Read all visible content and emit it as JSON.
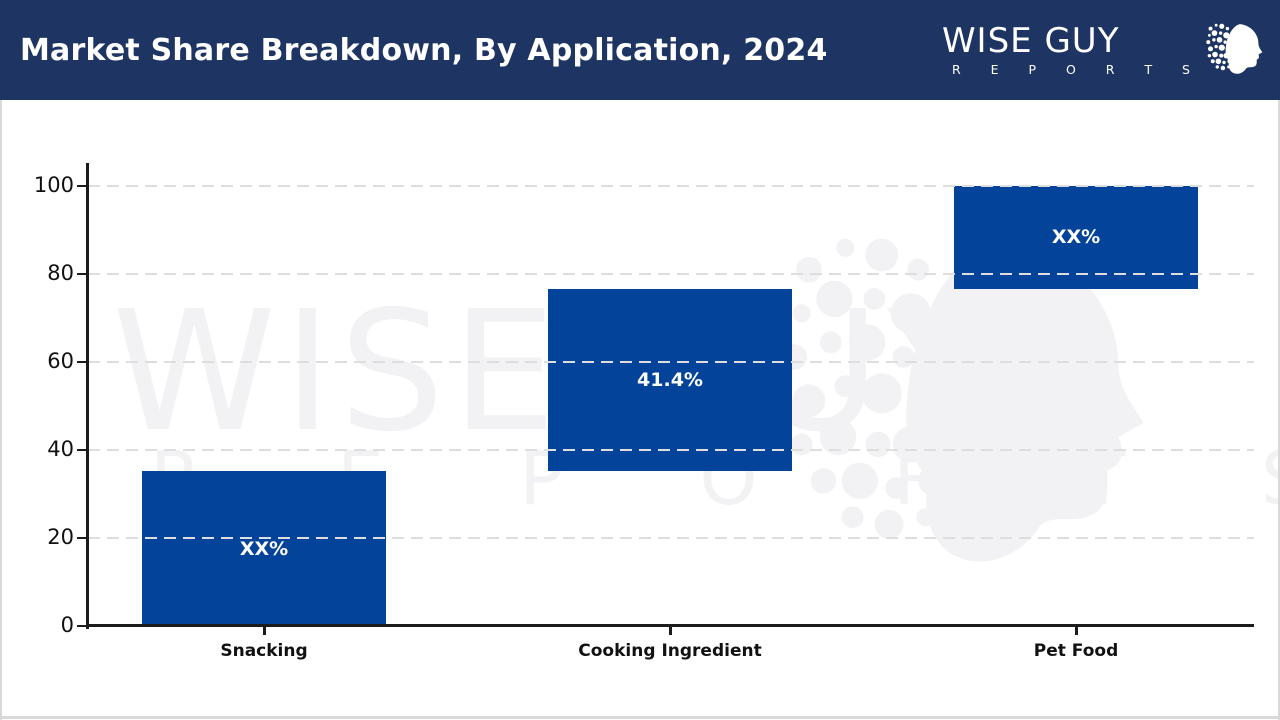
{
  "header": {
    "title": "Market Share Breakdown, By Application, 2024",
    "logo": {
      "line1": "WISE GUY",
      "line2": "R E P O R T S"
    }
  },
  "watermark": {
    "line1": "WISE GUY",
    "line2": "R E P O R T S"
  },
  "chart_data": {
    "type": "bar",
    "subtype": "waterfall",
    "title": "Market Share Breakdown, By Application, 2024",
    "categories": [
      "Snacking",
      "Cooking Ingredient",
      "Pet Food"
    ],
    "segments": [
      {
        "category": "Snacking",
        "start": 0,
        "end": 35.2,
        "label": "XX%"
      },
      {
        "category": "Cooking Ingredient",
        "start": 35.2,
        "end": 76.6,
        "label": "41.4%"
      },
      {
        "category": "Pet Food",
        "start": 76.6,
        "end": 100,
        "label": "XX%"
      }
    ],
    "ylim": [
      0,
      100
    ],
    "yticks": [
      0,
      20,
      40,
      60,
      80,
      100
    ],
    "grid": "horizontal-dashed",
    "legend": "none",
    "bar_color": "#04439a",
    "bar_label_color": "#ffffff"
  },
  "colors": {
    "header_bg": "#1e3563",
    "bar": "#04439a",
    "grid": "#dedede",
    "axis": "#1c1c1c",
    "watermark": "#f2f2f4",
    "edge": "#d9d9d9"
  }
}
